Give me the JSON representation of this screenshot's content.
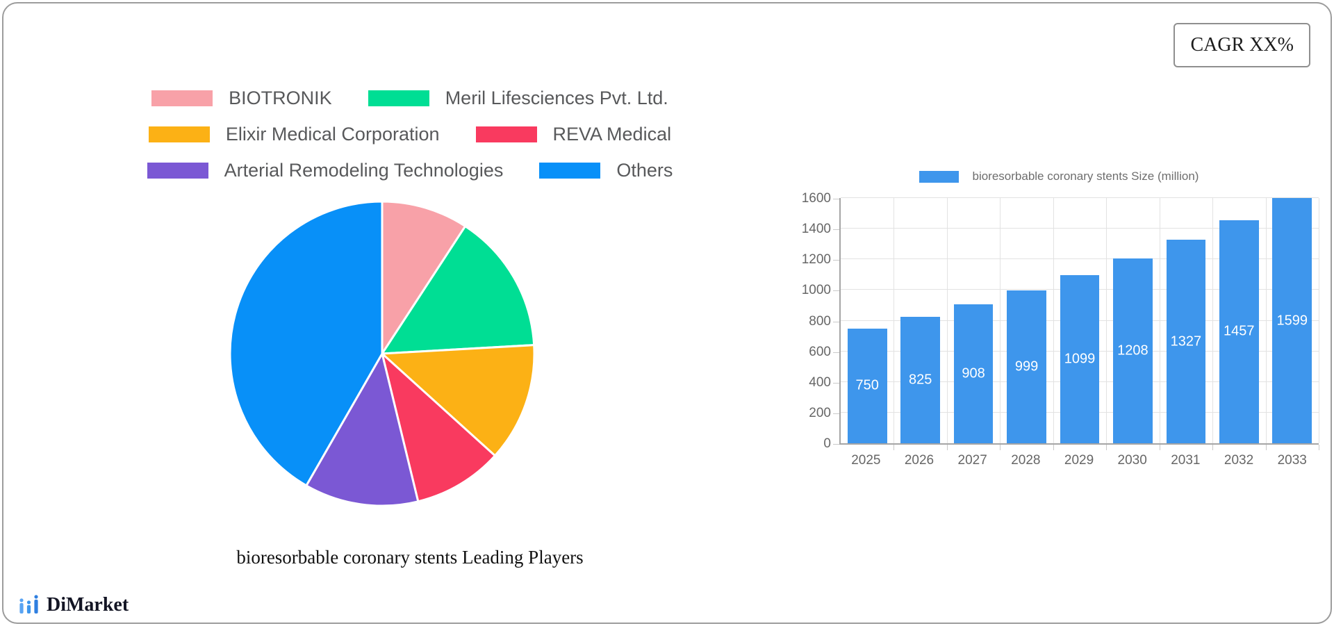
{
  "header": {
    "cagr_label": "CAGR XX%"
  },
  "logo": {
    "text": "DiMarket",
    "icon": "bar-chart-logo-icon",
    "icon_color": "#3E96EC"
  },
  "colors": {
    "bar_blue": "#3E96EC",
    "grid": "#e2e2e2",
    "axis": "#a5a5a5",
    "axis_text": "#666666",
    "legend_text": "#58595b"
  },
  "chart_data": [
    {
      "type": "pie",
      "title": "bioresorbable coronary stents Leading Players",
      "legend_position": "top",
      "start_angle_deg": -90,
      "direction": "clockwise",
      "labels": [
        "BIOTRONIK",
        "Meril Lifesciences Pvt. Ltd.",
        "Elixir Medical Corporation",
        "REVA Medical",
        "Arterial Remodeling Technologies",
        "Others"
      ],
      "values_percent": [
        9.2,
        14.9,
        12.6,
        9.5,
        12.1,
        41.7
      ],
      "colors": [
        "#F8A1A8",
        "#00DE94",
        "#FCB115",
        "#F93A5F",
        "#7B58D4",
        "#0890F8"
      ]
    },
    {
      "type": "bar",
      "series": [
        {
          "name": "bioresorbable coronary stents Size (million)",
          "values": [
            750,
            825,
            908,
            999,
            1099,
            1208,
            1327,
            1457,
            1599
          ]
        }
      ],
      "categories": [
        "2025",
        "2026",
        "2027",
        "2028",
        "2029",
        "2030",
        "2031",
        "2032",
        "2033"
      ],
      "ylim": [
        0,
        1600
      ],
      "yticks": [
        0,
        200,
        400,
        600,
        800,
        1000,
        1200,
        1400,
        1600
      ],
      "grid": true,
      "bar_color": "#3E96EC",
      "value_label_color": "#ffffff",
      "legend_position": "top"
    }
  ]
}
